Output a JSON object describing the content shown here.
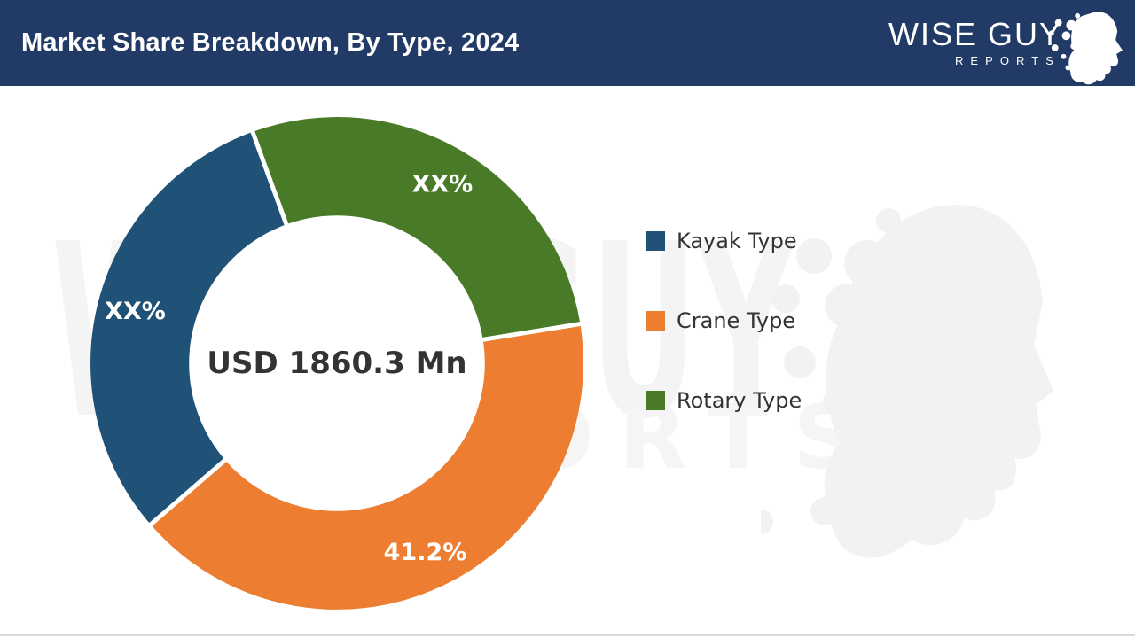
{
  "header": {
    "title": "Market Share Breakdown, By Type, 2024",
    "bg_color": "#213a66"
  },
  "brand": {
    "name": "WISE GUY",
    "sub": "REPORTS"
  },
  "watermark": {
    "line1": "WISE GUY",
    "line2": "REPORTS"
  },
  "chart_data": {
    "type": "donut",
    "title": "Market Share Breakdown, By Type, 2024",
    "center_label": "USD 1860.3 Mn",
    "unit": "%",
    "segments": [
      {
        "label": "Kayak Type",
        "value": 30.8,
        "display_label": "XX%",
        "color": "#1f5276"
      },
      {
        "label": "Crane Type",
        "value": 41.2,
        "display_label": "41.2%",
        "color": "#ed7d31"
      },
      {
        "label": "Rotary Type",
        "value": 28.0,
        "display_label": "XX%",
        "color": "#497a28"
      }
    ],
    "start_angle_deg": -20,
    "draw_order": [
      "Rotary Type",
      "Crane Type",
      "Kayak Type"
    ],
    "legend_position": "right",
    "inner_radius_ratio": 0.6,
    "separator_color": "#ffffff",
    "label_color": "#ffffff"
  }
}
